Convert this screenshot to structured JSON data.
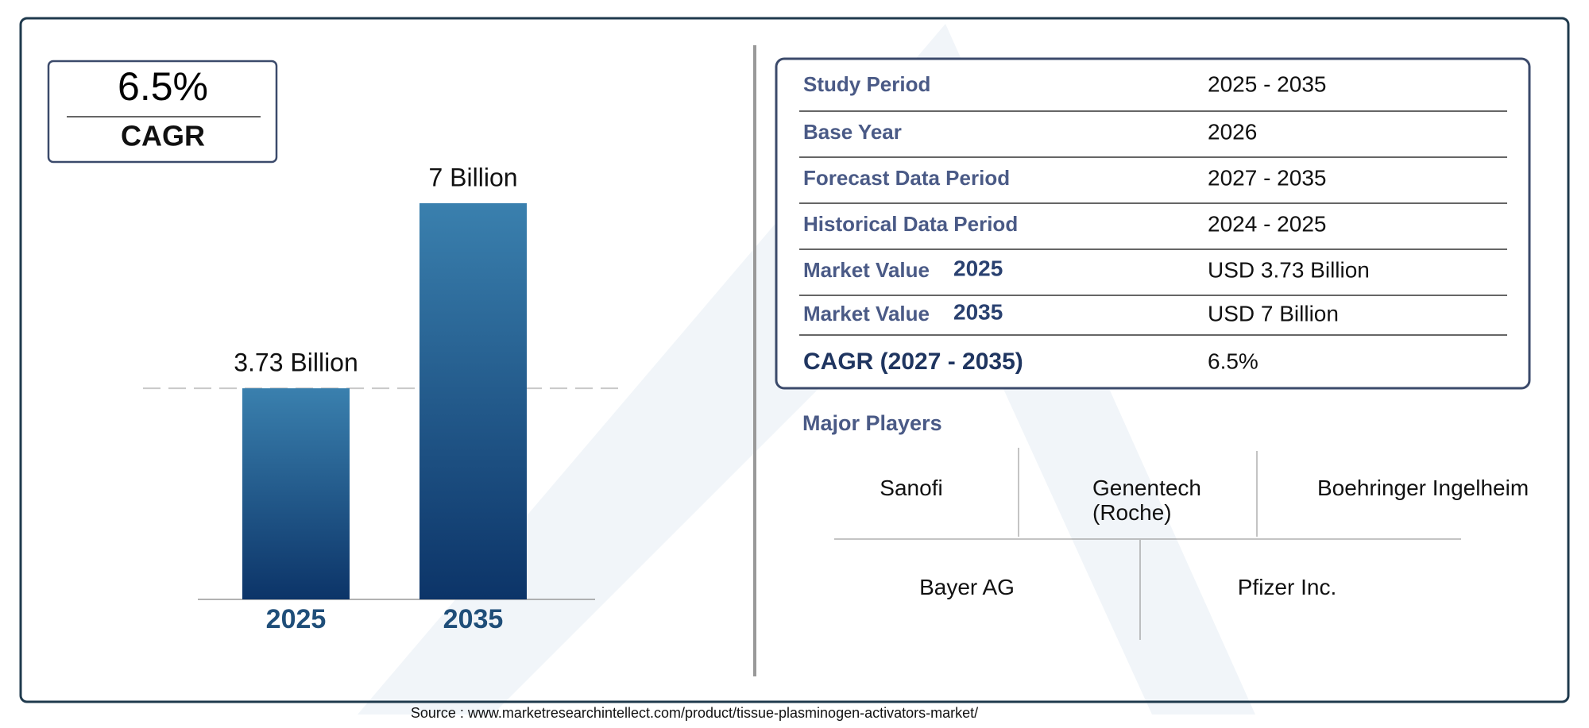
{
  "cagr_box": {
    "value": "6.5%",
    "label": "CAGR"
  },
  "chart_data": {
    "type": "bar",
    "categories": [
      "2025",
      "2035"
    ],
    "values": [
      3.73,
      7
    ],
    "value_labels": [
      "3.73 Billion",
      "7 Billion"
    ],
    "color": "#0c3468"
  },
  "table": {
    "rows": [
      {
        "label": "Study Period",
        "value": "2025 - 2035"
      },
      {
        "label": "Base Year",
        "value": "2026"
      },
      {
        "label": "Forecast Data Period",
        "value": "2027 - 2035"
      },
      {
        "label": "Historical Data Period",
        "value": "2024 - 2025"
      },
      {
        "label": "Market Value",
        "year": "2025",
        "value": "USD 3.73 Billion"
      },
      {
        "label": "Market Value",
        "year": "2035",
        "value": "USD 7 Billion"
      },
      {
        "label": "CAGR (2027 - 2035)",
        "value": "6.5%"
      }
    ]
  },
  "major_players": {
    "title": "Major Players",
    "names": [
      "Sanofi",
      "Genentech (Roche)",
      "Boehringer Ingelheim",
      "Bayer AG",
      "Pfizer Inc."
    ]
  },
  "source": "Source : www.marketresearchintellect.com/product/tissue-plasminogen-activators-market/"
}
